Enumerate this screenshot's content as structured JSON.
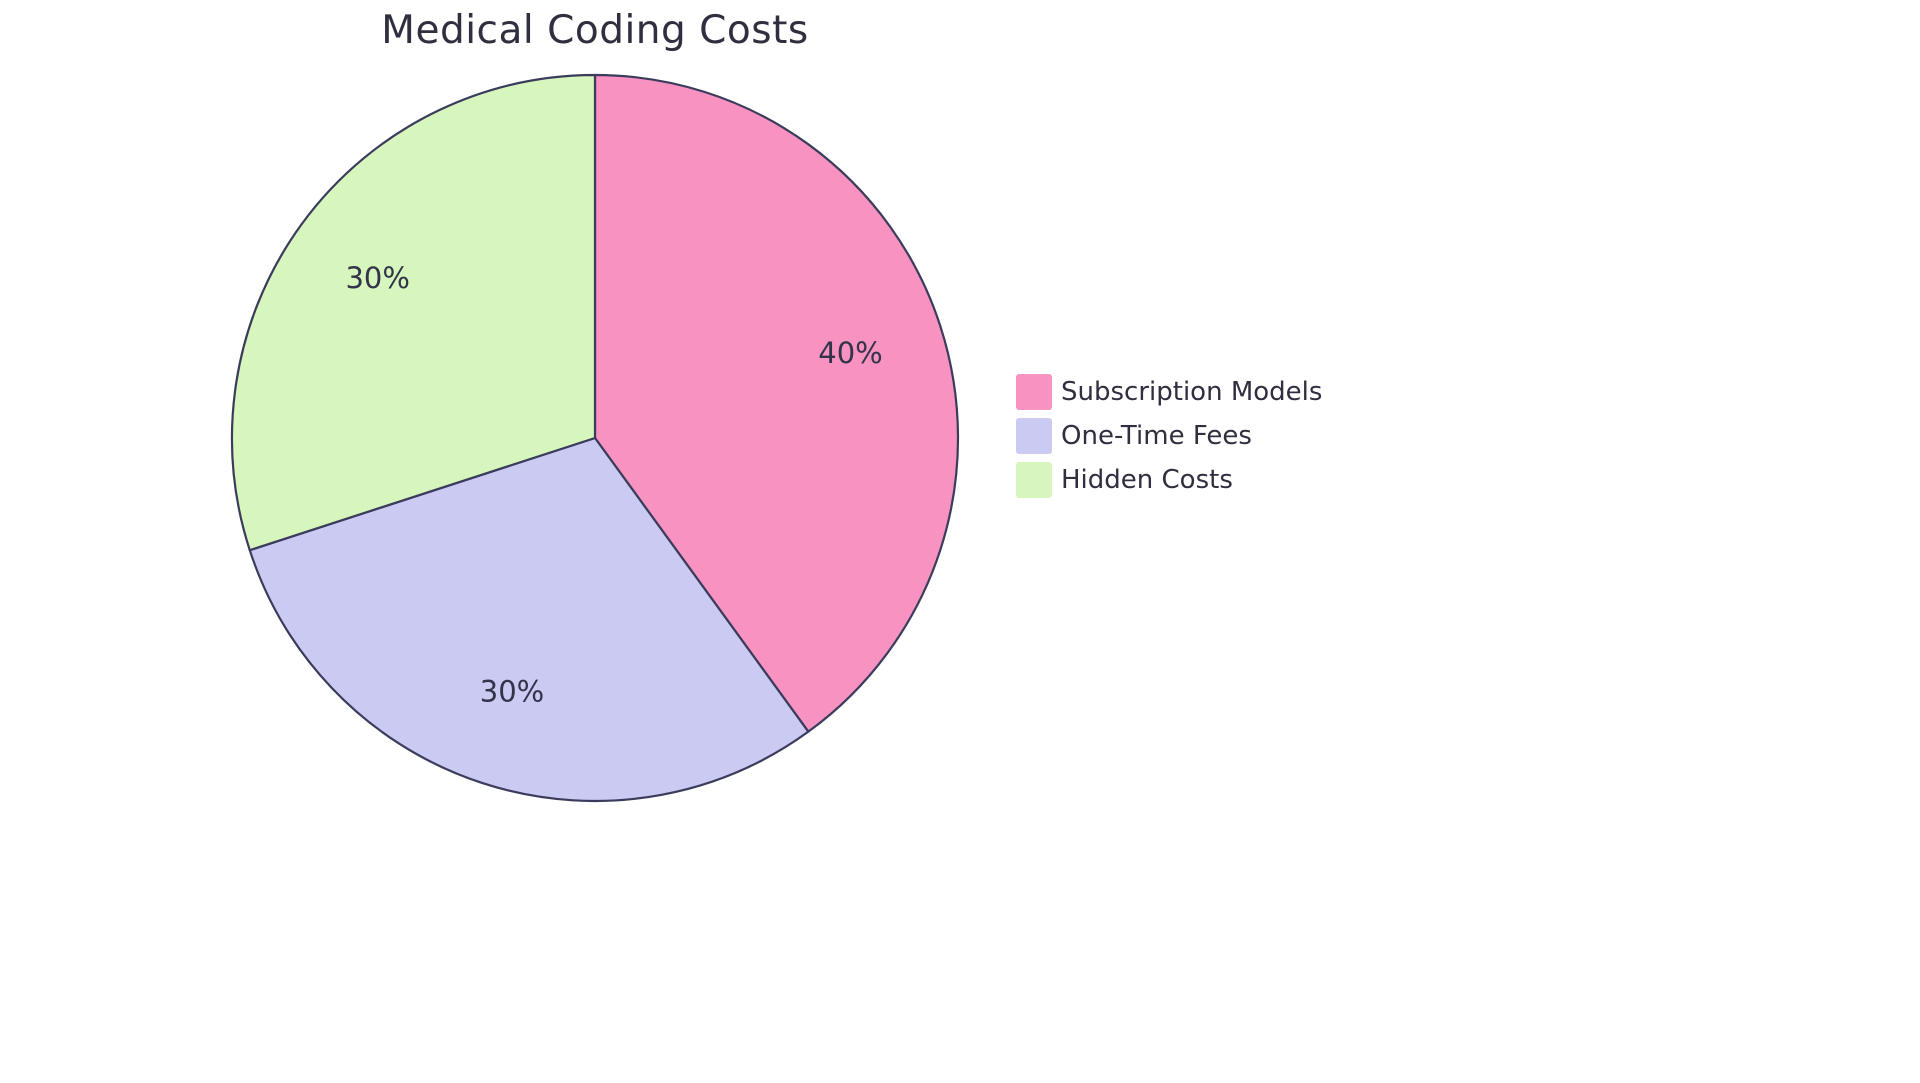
{
  "chart_data": {
    "type": "pie",
    "title": "Medical Coding Costs",
    "labels": [
      "Subscription Models",
      "One-Time Fees",
      "Hidden Costs"
    ],
    "values": [
      40,
      30,
      30
    ],
    "percent_labels": [
      "40%",
      "30%",
      "30%"
    ],
    "colors": [
      "#F893C1",
      "#CACAF3",
      "#D7F6BD"
    ],
    "outline_color": "#3B3B5C",
    "text_color": "#2F2F3F",
    "start_angle_deg": 0,
    "direction": "clockwise",
    "legend_position": "right",
    "background": "#FFFFFF"
  }
}
